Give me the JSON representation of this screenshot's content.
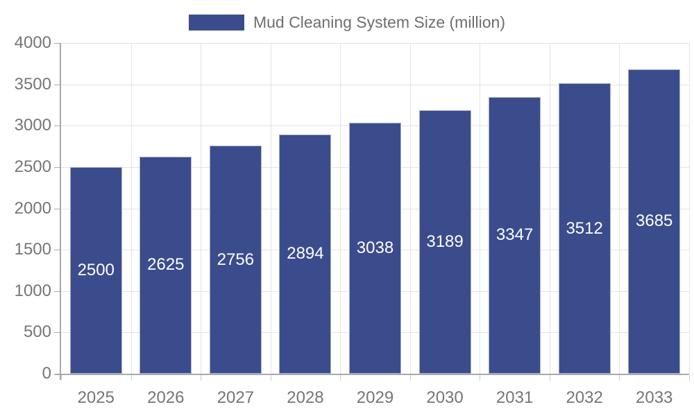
{
  "legend": {
    "label": "Mud Cleaning System Size (million)"
  },
  "chart_data": {
    "type": "bar",
    "title": "",
    "xlabel": "",
    "ylabel": "",
    "series_name": "Mud Cleaning System Size (million)",
    "categories": [
      "2025",
      "2026",
      "2027",
      "2028",
      "2029",
      "2030",
      "2031",
      "2032",
      "2033"
    ],
    "values": [
      2500,
      2625,
      2756,
      2894,
      3038,
      3189,
      3347,
      3512,
      3685
    ],
    "ylim": [
      0,
      4000
    ],
    "ytick_step": 500,
    "yticks": [
      "0",
      "500",
      "1000",
      "1500",
      "2000",
      "2500",
      "3000",
      "3500",
      "4000"
    ],
    "grid": true,
    "legend_position": "top",
    "bar_labels_inside": true
  },
  "colors": {
    "bar_fill": "#3A4C8C",
    "bar_border": "#A9B1CE",
    "bar_label": "#FFFFFF",
    "grid": "#E3E3E3",
    "axis": "#A8A8A8",
    "tick": "#C9C9C9",
    "axis_text": "#757575",
    "legend_text": "#6E6E6E",
    "background": "#FFFFFF"
  }
}
